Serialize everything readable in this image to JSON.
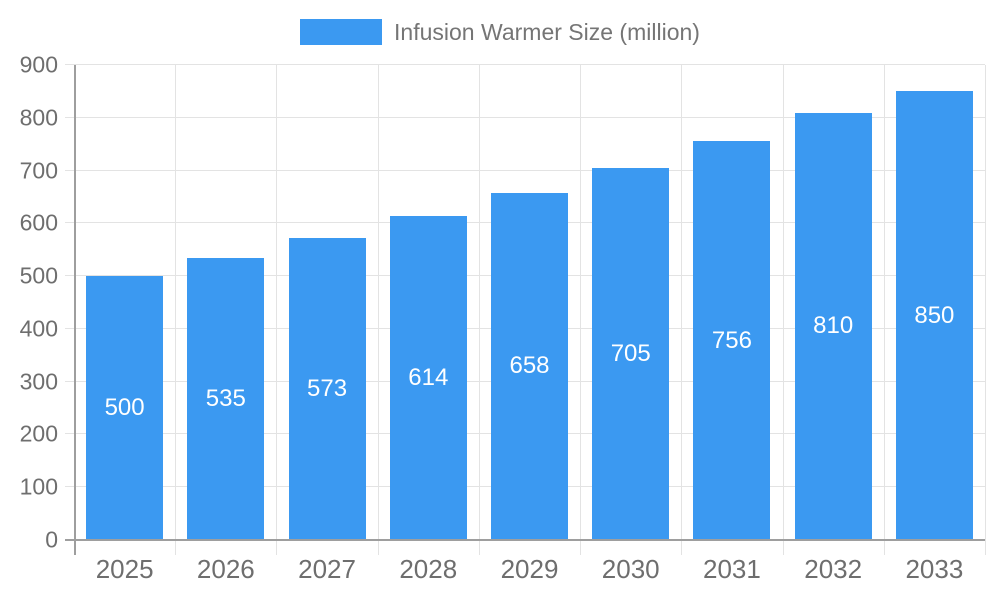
{
  "chart_data": {
    "type": "bar",
    "title": "",
    "legend": "Infusion Warmer Size (million)",
    "legend_position": "top-center",
    "categories": [
      "2025",
      "2026",
      "2027",
      "2028",
      "2029",
      "2030",
      "2031",
      "2032",
      "2033"
    ],
    "series": [
      {
        "name": "Infusion Warmer Size (million)",
        "values": [
          500,
          535,
          573,
          614,
          658,
          705,
          756,
          810,
          850
        ]
      }
    ],
    "value_labels_shown": true,
    "xlabel": "",
    "ylabel": "",
    "ylim": [
      0,
      900
    ],
    "ytick_step": 100,
    "grid": true,
    "colors": {
      "bar": "#3B99F1",
      "bar_value_label": "#FFFFFF",
      "axis_line": "#9E9E9E",
      "gridline": "#E3E3E3",
      "tick_label": "#6E6E6E",
      "legend_text": "#757575",
      "background": "#FFFFFF"
    }
  }
}
